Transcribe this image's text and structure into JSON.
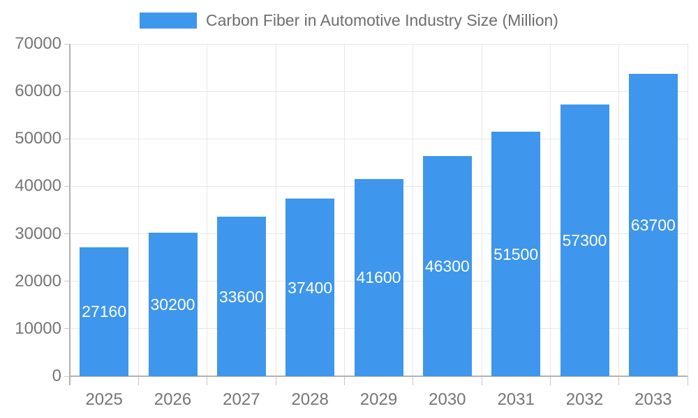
{
  "legend": {
    "label": "Carbon Fiber in Automotive Industry Size (Million)"
  },
  "chart_data": {
    "type": "bar",
    "title": "Carbon Fiber in Automotive Industry Size (Million)",
    "categories": [
      "2025",
      "2026",
      "2027",
      "2028",
      "2029",
      "2030",
      "2031",
      "2032",
      "2033"
    ],
    "values": [
      27160,
      30200,
      33600,
      37400,
      41600,
      46300,
      51500,
      57300,
      63700
    ],
    "value_labels": [
      "27160",
      "30200",
      "33600",
      "37400",
      "41600",
      "46300",
      "51500",
      "57300",
      "63700"
    ],
    "xlabel": "",
    "ylabel": "",
    "ylim": [
      0,
      70000
    ],
    "ytick_step": 10000,
    "ytick_labels": [
      "0",
      "10000",
      "20000",
      "30000",
      "40000",
      "50000",
      "60000",
      "70000"
    ],
    "grid": true,
    "legend_position": "top",
    "bar_color": "#3E96ED",
    "data_label_color": "#ffffff",
    "axis_text_color": "#757575",
    "grid_color": "#e7e7e7",
    "axis_line_color": "#b1b1b1"
  }
}
